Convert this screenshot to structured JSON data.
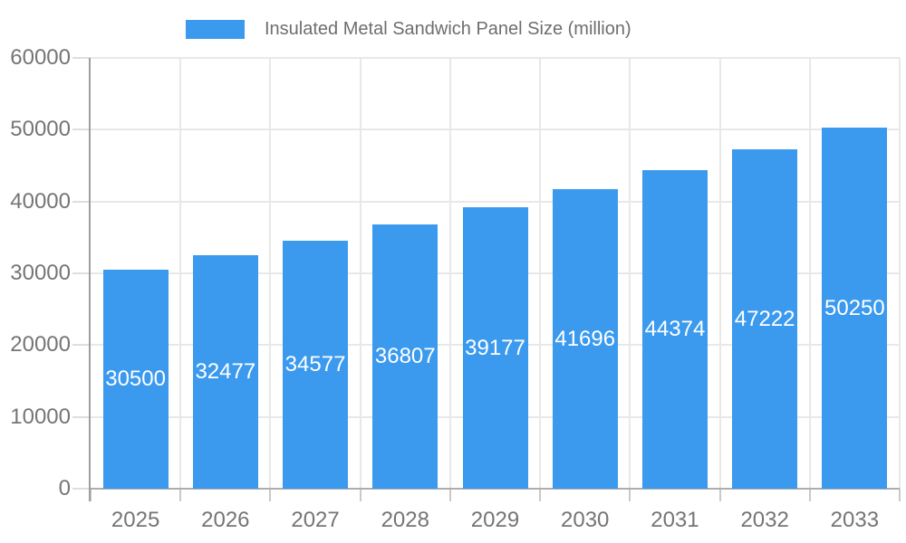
{
  "legend": {
    "label": "Insulated Metal Sandwich Panel Size (million)"
  },
  "chart_data": {
    "type": "bar",
    "title": "Insulated Metal Sandwich Panel Size (million)",
    "categories": [
      "2025",
      "2026",
      "2027",
      "2028",
      "2029",
      "2030",
      "2031",
      "2032",
      "2033"
    ],
    "values": [
      30500,
      32477,
      34577,
      36807,
      39177,
      41696,
      44374,
      47222,
      50250
    ],
    "xlabel": "",
    "ylabel": "",
    "ylim": [
      0,
      60000
    ],
    "yticks": [
      0,
      10000,
      20000,
      30000,
      40000,
      50000,
      60000
    ],
    "grid": true,
    "legend_position": "top",
    "bar_color": "#3b9aee",
    "value_label_color": "#ffffff",
    "axis_text_color": "#757575"
  }
}
